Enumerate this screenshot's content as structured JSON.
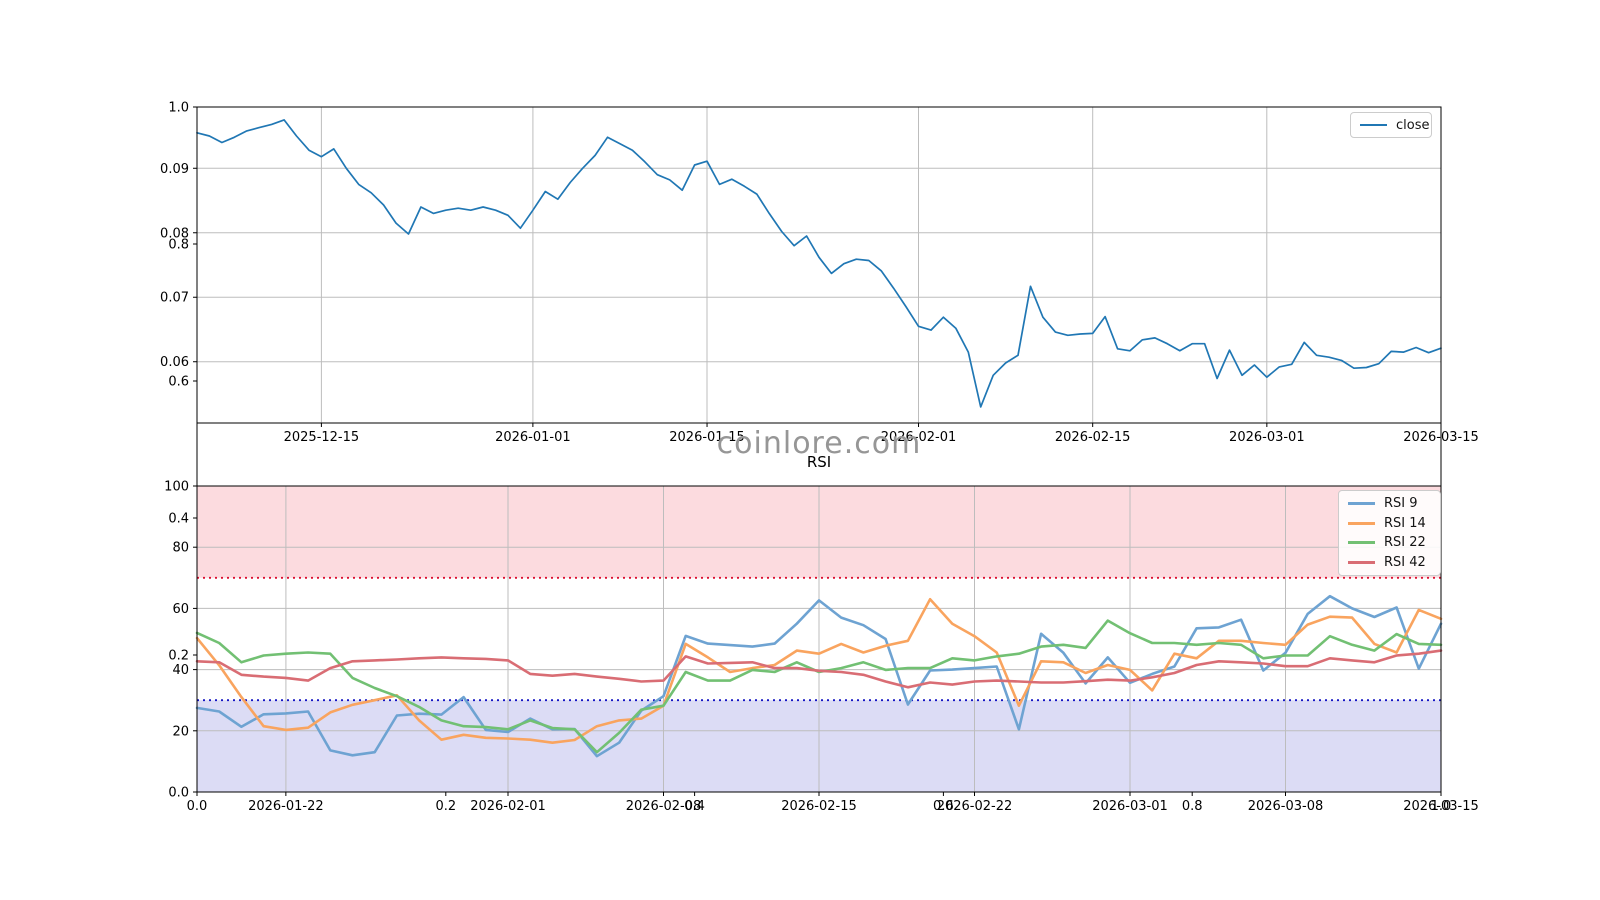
{
  "watermark": "coinlore.com",
  "colors": {
    "close": "#2077b4",
    "rsi_9": "#6ea3d2",
    "rsi_14": "#f9a45f",
    "rsi_22": "#72c073",
    "rsi_42": "#d96d74",
    "overbought_zone": "#fcdbdf",
    "oversold_zone": "#dcdcf5",
    "overbought_line": "#dc1030",
    "oversold_line": "#1515c4",
    "grid": "#bdbdbd",
    "spine": "#000000",
    "tick_text": "#000000",
    "watermark_color": "#969696"
  },
  "overlay_axis": {
    "x_tick_labels": [
      "0.0",
      "0.2",
      "0.4",
      "0.6",
      "0.8",
      "1.0"
    ],
    "y_tick_labels": [
      "1.0",
      "0.8",
      "0.6",
      "0.4",
      "0.2",
      "0.0"
    ]
  },
  "price_chart": {
    "legend_items": [
      {
        "label": "close",
        "color": "close"
      }
    ],
    "y_tick_labels": [
      "0.09",
      "0.08",
      "0.07",
      "0.06"
    ]
  },
  "rsi_chart": {
    "title": "RSI",
    "legend_items": [
      {
        "label": "RSI 9",
        "color": "rsi_9"
      },
      {
        "label": "RSI 14",
        "color": "rsi_14"
      },
      {
        "label": "RSI 22",
        "color": "rsi_22"
      },
      {
        "label": "RSI 42",
        "color": "rsi_42"
      }
    ],
    "y_tick_labels": [
      "20",
      "40",
      "60",
      "80",
      "100"
    ]
  },
  "chart_data": [
    {
      "type": "line",
      "name": "price",
      "title": "",
      "ylabel": "",
      "start_date": "2025-12-05",
      "end_date": "2026-03-15",
      "ylim": [
        0.0505,
        0.0995
      ],
      "grid": true,
      "legend_position": "upper right",
      "y_tick_values": [
        0.09,
        0.08,
        0.07,
        0.06
      ],
      "x_ticks": [
        "2025-12-15",
        "2026-01-01",
        "2026-01-15",
        "2026-02-01",
        "2026-02-15",
        "2026-03-01",
        "2026-03-15"
      ],
      "series": [
        {
          "name": "close",
          "color": "close",
          "values": [
            0.0955,
            0.095,
            0.094,
            0.0948,
            0.0958,
            0.0963,
            0.0968,
            0.0975,
            0.095,
            0.0928,
            0.0918,
            0.093,
            0.09,
            0.0875,
            0.0862,
            0.0843,
            0.0815,
            0.0798,
            0.084,
            0.083,
            0.0835,
            0.0838,
            0.0835,
            0.084,
            0.0835,
            0.0827,
            0.0807,
            0.0835,
            0.0864,
            0.0852,
            0.0878,
            0.09,
            0.092,
            0.0948,
            0.0938,
            0.0928,
            0.091,
            0.089,
            0.0882,
            0.0866,
            0.0905,
            0.0911,
            0.0875,
            0.0883,
            0.0872,
            0.086,
            0.083,
            0.0802,
            0.078,
            0.0795,
            0.0762,
            0.0737,
            0.0752,
            0.0759,
            0.0757,
            0.0741,
            0.0714,
            0.0685,
            0.0655,
            0.0649,
            0.0669,
            0.0652,
            0.0615,
            0.053,
            0.0579,
            0.0598,
            0.061,
            0.0717,
            0.0669,
            0.0646,
            0.0641,
            0.0643,
            0.0644,
            0.067,
            0.062,
            0.0617,
            0.0634,
            0.0637,
            0.0628,
            0.0617,
            0.0628,
            0.0628,
            0.0574,
            0.0618,
            0.0579,
            0.0595,
            0.0576,
            0.0592,
            0.0596,
            0.063,
            0.061,
            0.0607,
            0.0602,
            0.059,
            0.0591,
            0.0597,
            0.0616,
            0.0615,
            0.0622,
            0.0614,
            0.0621
          ]
        }
      ]
    },
    {
      "type": "line",
      "name": "rsi",
      "title": "RSI",
      "start_date": "2026-01-18",
      "end_date": "2026-03-15",
      "ylim": [
        0,
        100
      ],
      "grid": true,
      "legend_position": "upper right",
      "thresholds": {
        "overbought": 70,
        "oversold": 30
      },
      "y_tick_values": [
        20,
        40,
        60,
        80,
        100
      ],
      "x_ticks": [
        "2026-01-22",
        "2026-02-01",
        "2026-02-08",
        "2026-02-15",
        "2026-02-22",
        "2026-03-01",
        "2026-03-08",
        "2026-03-15"
      ],
      "series": [
        {
          "name": "RSI 9",
          "color": "rsi_9",
          "values": [
            27.5,
            26.3,
            21.3,
            25.4,
            25.7,
            26.3,
            13.6,
            12.0,
            13.0,
            25.0,
            25.6,
            25.3,
            31.0,
            20.3,
            19.6,
            24.0,
            20.5,
            20.6,
            11.7,
            16.1,
            26.6,
            31.3,
            51.0,
            48.5,
            48.0,
            47.5,
            48.5,
            55.0,
            62.6,
            57.0,
            54.5,
            50.0,
            28.6,
            39.7,
            40.0,
            40.5,
            41.0,
            20.5,
            51.7,
            45.5,
            35.5,
            44.0,
            35.7,
            38.6,
            41.0,
            53.5,
            53.8,
            56.3,
            39.7,
            45.5,
            58.2,
            64.0,
            60.0,
            57.2,
            60.3,
            40.3,
            55.0
          ]
        },
        {
          "name": "RSI 14",
          "color": "rsi_14",
          "values": [
            50.3,
            41.4,
            31.0,
            21.5,
            20.3,
            21.0,
            26.0,
            28.5,
            30.0,
            31.6,
            23.4,
            17.1,
            18.7,
            17.7,
            17.5,
            17.1,
            16.1,
            17.0,
            21.5,
            23.4,
            24.0,
            28.2,
            48.4,
            44.0,
            39.2,
            40.5,
            41.5,
            46.2,
            45.2,
            48.4,
            45.6,
            47.8,
            49.4,
            63.0,
            55.0,
            50.9,
            45.6,
            28.2,
            42.7,
            42.4,
            38.9,
            41.5,
            39.9,
            33.2,
            45.2,
            43.7,
            49.4,
            49.4,
            48.7,
            48.1,
            54.7,
            57.3,
            57.0,
            48.4,
            45.6,
            59.5,
            56.6
          ]
        },
        {
          "name": "RSI 22",
          "color": "rsi_22",
          "values": [
            52.0,
            48.7,
            42.4,
            44.6,
            45.2,
            45.6,
            45.2,
            37.3,
            34.0,
            31.3,
            27.8,
            23.4,
            21.5,
            21.2,
            20.5,
            23.4,
            20.9,
            20.5,
            13.0,
            19.3,
            26.9,
            28.2,
            39.2,
            36.4,
            36.4,
            39.9,
            39.2,
            42.4,
            39.2,
            40.5,
            42.4,
            39.9,
            40.5,
            40.5,
            43.7,
            43.0,
            44.3,
            45.2,
            47.5,
            48.1,
            47.1,
            56.0,
            51.9,
            48.7,
            48.7,
            48.1,
            48.7,
            48.1,
            43.7,
            44.6,
            44.6,
            50.9,
            48.1,
            46.2,
            51.6,
            48.4,
            48.1
          ]
        },
        {
          "name": "RSI 42",
          "color": "rsi_42",
          "values": [
            42.7,
            42.4,
            38.3,
            37.7,
            37.3,
            36.4,
            40.5,
            42.7,
            43.0,
            43.3,
            43.7,
            44.0,
            43.7,
            43.5,
            43.0,
            38.6,
            38.0,
            38.6,
            37.7,
            37.0,
            36.1,
            36.4,
            44.3,
            42.0,
            42.2,
            42.4,
            40.5,
            40.5,
            39.6,
            39.2,
            38.3,
            36.1,
            34.2,
            35.8,
            35.1,
            36.1,
            36.4,
            36.1,
            35.8,
            35.8,
            36.2,
            36.7,
            36.4,
            37.5,
            38.9,
            41.5,
            42.7,
            42.4,
            42.0,
            41.1,
            41.1,
            43.7,
            43.0,
            42.4,
            44.6,
            45.2,
            46.2
          ]
        }
      ]
    }
  ]
}
